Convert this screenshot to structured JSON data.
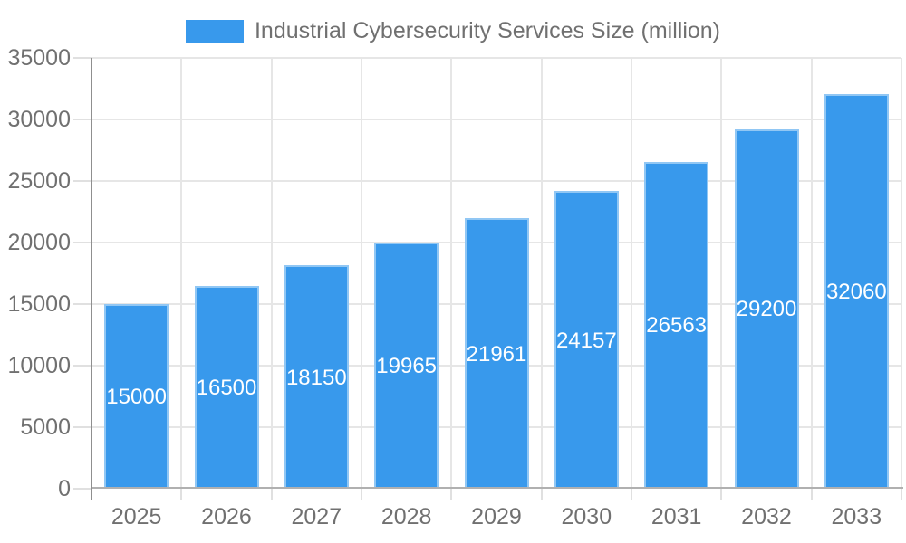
{
  "legend": {
    "label": "Industrial Cybersecurity Services Size (million)"
  },
  "colors": {
    "bar_fill": "#3899EC",
    "bar_edge": "rgba(255,255,255,0.45)",
    "grid_line": "#e6e6e6",
    "y_axis_line": "#8f8f8f",
    "x_axis_line": "#b0b0b0",
    "axis_text": "#707070",
    "value_label_text": "#ffffff",
    "background": "#ffffff"
  },
  "chart_data": {
    "type": "bar",
    "title": "",
    "series_name": "Industrial Cybersecurity Services Size (million)",
    "categories": [
      "2025",
      "2026",
      "2027",
      "2028",
      "2029",
      "2030",
      "2031",
      "2032",
      "2033"
    ],
    "values": [
      15000,
      16500,
      18150,
      19965,
      21961,
      24157,
      26563,
      29200,
      32060
    ],
    "value_labels": [
      "15000",
      "16500",
      "18150",
      "19965",
      "21961",
      "24157",
      "26563",
      "29200",
      "32060"
    ],
    "value_label_position": "inside-center",
    "xlabel": "",
    "ylabel": "",
    "ylim": [
      0,
      35000
    ],
    "yticks": [
      0,
      5000,
      10000,
      15000,
      20000,
      25000,
      30000,
      35000
    ],
    "grid": true,
    "vertical_grid_at_category_boundaries": true,
    "legend_position": "top-center"
  }
}
